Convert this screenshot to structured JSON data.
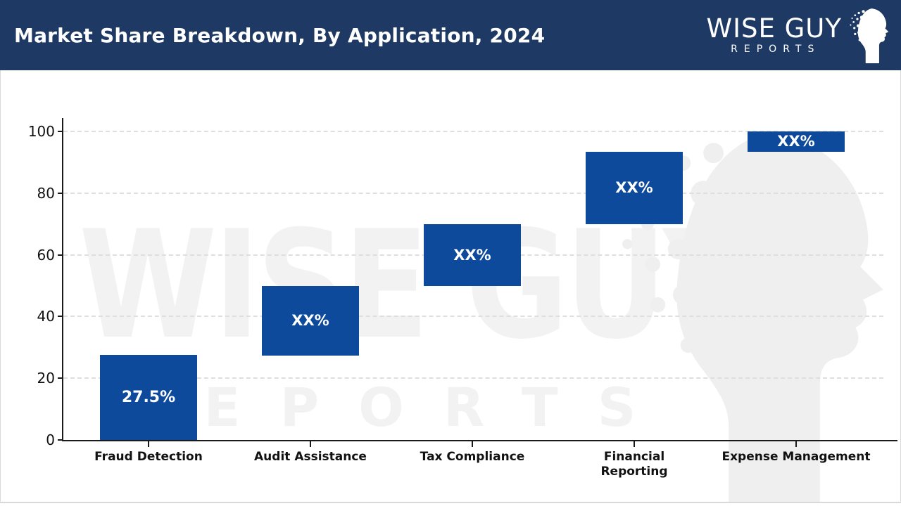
{
  "header": {
    "title": "Market Share Breakdown, By Application, 2024",
    "logo": {
      "line1": "WISE GUY",
      "line2": "REPORTS"
    }
  },
  "watermark": {
    "line1": "WISE GUY",
    "line2": "REPORTS"
  },
  "colors": {
    "header_bg": "#1e3a64",
    "bar": "#0d4a9c",
    "grid": "#dedede",
    "axis": "#1a1a1a",
    "bar_label": "#ffffff",
    "watermark": "#f2f2f2",
    "watermark_face": "#efefef"
  },
  "chart_data": {
    "type": "bar",
    "subtype": "waterfall",
    "title": "Market Share Breakdown, By Application, 2024",
    "categories": [
      "Fraud Detection",
      "Audit Assistance",
      "Tax Compliance",
      "Financial\nReporting",
      "Expense Management"
    ],
    "segments": [
      {
        "category": "Fraud Detection",
        "start": 0,
        "end": 27.5,
        "label": "27.5%"
      },
      {
        "category": "Audit Assistance",
        "start": 27.5,
        "end": 50,
        "label": "XX%"
      },
      {
        "category": "Tax Compliance",
        "start": 50,
        "end": 70,
        "label": "XX%"
      },
      {
        "category": "Financial Reporting",
        "start": 70,
        "end": 93.5,
        "label": "XX%"
      },
      {
        "category": "Expense Management",
        "start": 93.5,
        "end": 100,
        "label": "XX%"
      }
    ],
    "yticks": [
      0,
      20,
      40,
      60,
      80,
      100
    ],
    "ylim": [
      0,
      105
    ],
    "xlabel": "",
    "ylabel": "",
    "grid": "horizontal-dashed",
    "legend": "none"
  }
}
